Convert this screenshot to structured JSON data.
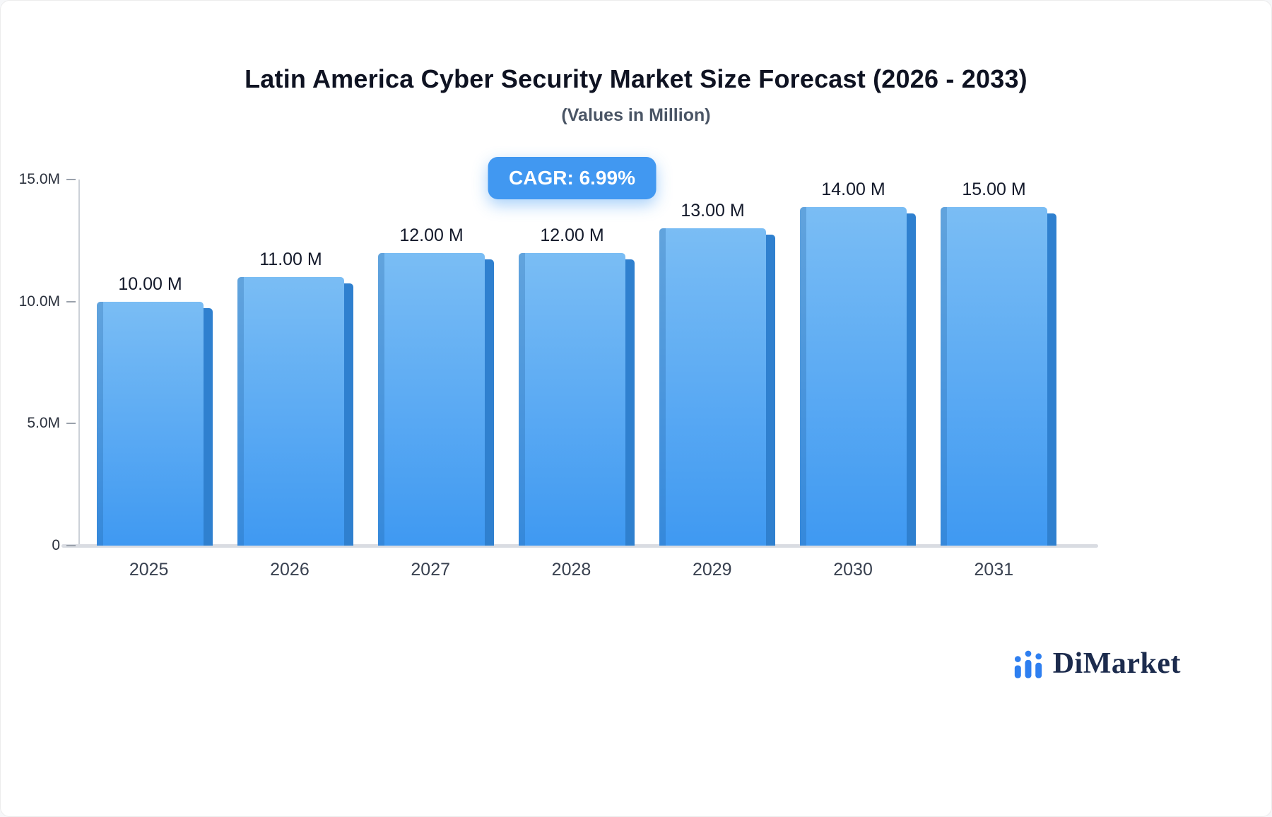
{
  "badge": {
    "label": "CAGR: 6.99%"
  },
  "logo": {
    "brand": "DiMarket"
  },
  "chart_data": {
    "type": "bar",
    "title": "Latin America Cyber Security Market Size Forecast (2026 - 2033)",
    "subtitle": "(Values in Million)",
    "categories": [
      "2025",
      "2026",
      "2027",
      "2028",
      "2029",
      "2030",
      "2031"
    ],
    "values": [
      10,
      11,
      12,
      12,
      13,
      14,
      15
    ],
    "value_labels": [
      "10.00 M",
      "11.00 M",
      "12.00 M",
      "12.00 M",
      "13.00 M",
      "14.00 M",
      "15.00 M"
    ],
    "unit": "Million",
    "cagr": "6.99%",
    "ylim": [
      0,
      15
    ],
    "yticks": [
      {
        "value": 0,
        "label": "0"
      },
      {
        "value": 5,
        "label": "5.0M"
      },
      {
        "value": 10,
        "label": "10.0M"
      },
      {
        "value": 15,
        "label": "15.0M"
      }
    ],
    "grid": false,
    "legend_position": "none",
    "colors": {
      "bar_top": "#7abdf4",
      "bar_bottom": "#3f99f2",
      "bar_side": "#2f80cf",
      "bar_edge": "rgba(25,87,152,0.25)",
      "badge": "#4198f1",
      "accent": "#2e7ff0"
    }
  }
}
